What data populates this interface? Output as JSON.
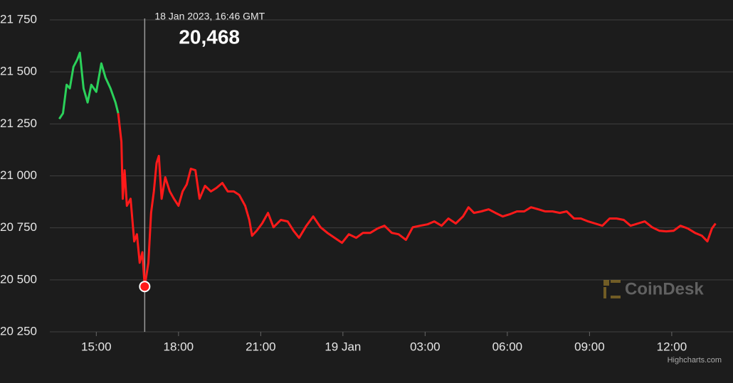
{
  "chart_data": {
    "type": "line",
    "tooltip": {
      "label": "18 Jan 2023, 16:46 GMT",
      "value_label": "20,468",
      "x": "2023-01-18T16:46",
      "value": 20468
    },
    "watermark": "CoinDesk",
    "credit": "Highcharts.com",
    "grid": true,
    "xlim": [
      "2023-01-18T13:26",
      "2023-01-19T13:43"
    ],
    "xticks": [
      {
        "value": "2023-01-18T15:00",
        "label": "15:00"
      },
      {
        "value": "2023-01-18T18:00",
        "label": "18:00"
      },
      {
        "value": "2023-01-18T21:00",
        "label": "21:00"
      },
      {
        "value": "2023-01-19T00:00",
        "label": "19 Jan"
      },
      {
        "value": "2023-01-19T03:00",
        "label": "03:00"
      },
      {
        "value": "2023-01-19T06:00",
        "label": "06:00"
      },
      {
        "value": "2023-01-19T09:00",
        "label": "09:00"
      },
      {
        "value": "2023-01-19T12:00",
        "label": "12:00"
      }
    ],
    "ylim": [
      20250,
      21750
    ],
    "yticks": [
      {
        "value": 20250,
        "label": "20 250"
      },
      {
        "value": 20500,
        "label": "20 500"
      },
      {
        "value": 20750,
        "label": "20 750"
      },
      {
        "value": 21000,
        "label": "21 000"
      },
      {
        "value": 21250,
        "label": "21 250"
      },
      {
        "value": 21500,
        "label": "21 500"
      },
      {
        "value": 21750,
        "label": "21 750"
      }
    ],
    "series": [
      {
        "color": "#2bd15a",
        "x": [
          "2023-01-18T13:39",
          "2023-01-18T13:47",
          "2023-01-18T13:55",
          "2023-01-18T14:02",
          "2023-01-18T14:10",
          "2023-01-18T14:18",
          "2023-01-18T14:24",
          "2023-01-18T14:32",
          "2023-01-18T14:41",
          "2023-01-18T14:49",
          "2023-01-18T15:00",
          "2023-01-18T15:11",
          "2023-01-18T15:20",
          "2023-01-18T15:31",
          "2023-01-18T15:42",
          "2023-01-18T15:48"
        ],
        "values": [
          21274,
          21301,
          21438,
          21421,
          21524,
          21558,
          21592,
          21421,
          21353,
          21438,
          21404,
          21541,
          21473,
          21421,
          21353,
          21301
        ]
      },
      {
        "color": "#ff1a1a",
        "x": [
          "2023-01-18T15:48",
          "2023-01-18T15:55",
          "2023-01-18T15:58",
          "2023-01-18T16:02",
          "2023-01-18T16:07",
          "2023-01-18T16:15",
          "2023-01-18T16:23",
          "2023-01-18T16:29",
          "2023-01-18T16:35",
          "2023-01-18T16:41",
          "2023-01-18T16:46",
          "2023-01-18T16:54",
          "2023-01-18T17:00",
          "2023-01-18T17:06",
          "2023-01-18T17:12",
          "2023-01-18T17:17",
          "2023-01-18T17:23",
          "2023-01-18T17:31",
          "2023-01-18T17:41",
          "2023-01-18T17:50",
          "2023-01-18T18:00",
          "2023-01-18T18:09",
          "2023-01-18T18:18",
          "2023-01-18T18:27",
          "2023-01-18T18:37",
          "2023-01-18T18:46",
          "2023-01-18T18:58",
          "2023-01-18T19:11",
          "2023-01-18T19:23",
          "2023-01-18T19:36",
          "2023-01-18T19:48",
          "2023-01-18T20:01",
          "2023-01-18T20:13",
          "2023-01-18T20:26",
          "2023-01-18T20:35",
          "2023-01-18T20:41",
          "2023-01-18T20:51",
          "2023-01-18T21:03",
          "2023-01-18T21:16",
          "2023-01-18T21:28",
          "2023-01-18T21:44",
          "2023-01-18T21:59",
          "2023-01-18T22:12",
          "2023-01-18T22:24",
          "2023-01-18T22:40",
          "2023-01-18T22:55",
          "2023-01-18T23:11",
          "2023-01-18T23:26",
          "2023-01-18T23:42",
          "2023-01-18T23:58",
          "2023-01-19T00:13",
          "2023-01-19T00:29",
          "2023-01-19T00:44",
          "2023-01-19T01:00",
          "2023-01-19T01:16",
          "2023-01-19T01:31",
          "2023-01-19T01:47",
          "2023-01-19T02:02",
          "2023-01-19T02:18",
          "2023-01-19T02:33",
          "2023-01-19T02:49",
          "2023-01-19T03:05",
          "2023-01-19T03:20",
          "2023-01-19T03:36",
          "2023-01-19T03:51",
          "2023-01-19T04:07",
          "2023-01-19T04:23",
          "2023-01-19T04:35",
          "2023-01-19T04:47",
          "2023-01-19T05:03",
          "2023-01-19T05:19",
          "2023-01-19T05:34",
          "2023-01-19T05:50",
          "2023-01-19T06:05",
          "2023-01-19T06:21",
          "2023-01-19T06:37",
          "2023-01-19T06:52",
          "2023-01-19T07:08",
          "2023-01-19T07:23",
          "2023-01-19T07:39",
          "2023-01-19T07:55",
          "2023-01-19T08:10",
          "2023-01-19T08:26",
          "2023-01-19T08:41",
          "2023-01-19T08:57",
          "2023-01-19T09:12",
          "2023-01-19T09:28",
          "2023-01-19T09:44",
          "2023-01-19T09:59",
          "2023-01-19T10:15",
          "2023-01-19T10:30",
          "2023-01-19T10:46",
          "2023-01-19T11:01",
          "2023-01-19T11:17",
          "2023-01-19T11:33",
          "2023-01-19T11:48",
          "2023-01-19T12:04",
          "2023-01-19T12:19",
          "2023-01-19T12:35",
          "2023-01-19T12:51",
          "2023-01-19T13:06",
          "2023-01-19T13:18",
          "2023-01-19T13:28",
          "2023-01-19T13:36"
        ],
        "values": [
          21301,
          21164,
          20890,
          21027,
          20856,
          20890,
          20685,
          20719,
          20582,
          20633,
          20468,
          20582,
          20822,
          20925,
          21062,
          21096,
          20890,
          20993,
          20925,
          20890,
          20856,
          20925,
          20959,
          21034,
          21027,
          20890,
          20952,
          20925,
          20942,
          20966,
          20925,
          20925,
          20908,
          20856,
          20788,
          20712,
          20736,
          20771,
          20822,
          20753,
          20788,
          20781,
          20736,
          20702,
          20760,
          20805,
          20753,
          20726,
          20702,
          20678,
          20719,
          20702,
          20726,
          20726,
          20747,
          20760,
          20726,
          20719,
          20692,
          20753,
          20760,
          20767,
          20781,
          20760,
          20795,
          20771,
          20805,
          20849,
          20822,
          20829,
          20839,
          20822,
          20805,
          20815,
          20829,
          20829,
          20849,
          20839,
          20829,
          20829,
          20822,
          20829,
          20795,
          20795,
          20781,
          20771,
          20760,
          20795,
          20795,
          20788,
          20760,
          20771,
          20781,
          20753,
          20736,
          20733,
          20736,
          20760,
          20747,
          20726,
          20712,
          20685,
          20747,
          20771
        ]
      }
    ]
  }
}
